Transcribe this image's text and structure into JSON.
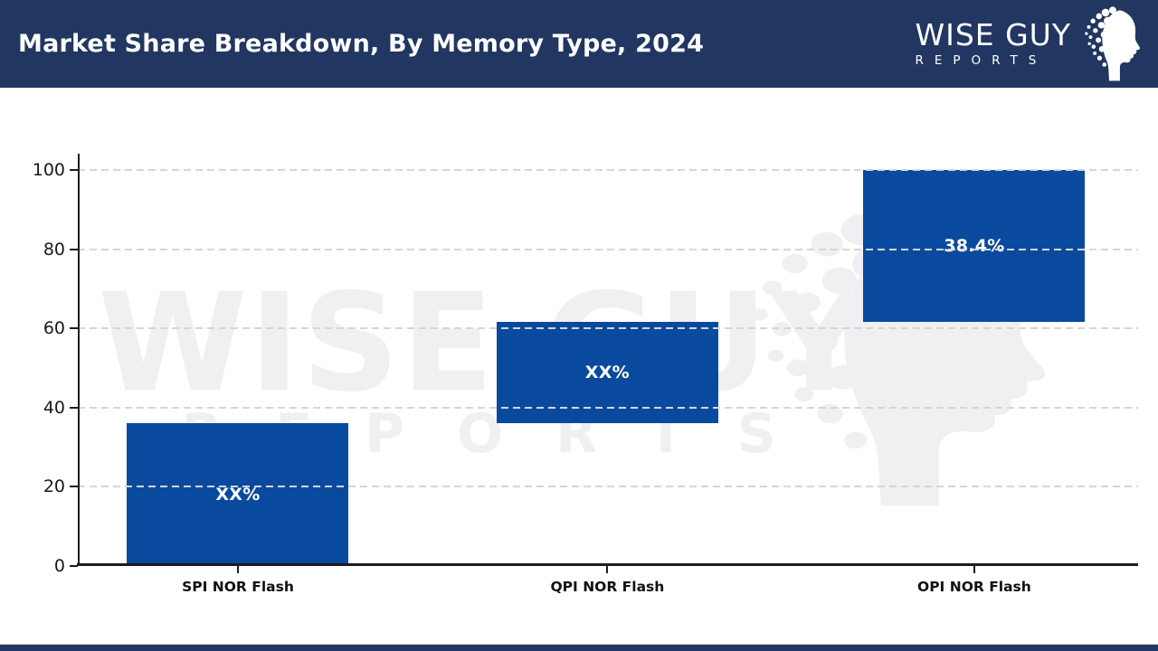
{
  "header": {
    "title": "Market Share Breakdown, By Memory Type, 2024",
    "logo": {
      "line1": "WISE GUY",
      "line2": "REPORTS"
    }
  },
  "watermark": {
    "line1": "WISE GUY",
    "line2": "REPORTS"
  },
  "colors": {
    "header_bg": "#213661",
    "bar": "#0a4a9e",
    "grid": "#d6d6d6",
    "axis": "#1c1c1c",
    "watermark": "#f0f0f2"
  },
  "chart_data": {
    "type": "bar",
    "variant": "floating-waterfall-columns",
    "title": "Market Share Breakdown, By Memory Type, 2024",
    "categories": [
      "SPI NOR Flash",
      "QPI NOR Flash",
      "OPI NOR Flash"
    ],
    "segments": [
      {
        "category": "SPI NOR Flash",
        "start": 0,
        "end": 36.0,
        "label": "XX%"
      },
      {
        "category": "QPI NOR Flash",
        "start": 36.0,
        "end": 61.6,
        "label": "XX%"
      },
      {
        "category": "OPI NOR Flash",
        "start": 61.6,
        "end": 100,
        "label": "38.4%"
      }
    ],
    "ylim": [
      0,
      100
    ],
    "yticks": [
      0,
      20,
      40,
      60,
      80,
      100
    ],
    "grid": "horizontal-dashed",
    "gridlines_over_bars": true,
    "legend": "none",
    "xlabel": "",
    "ylabel": ""
  }
}
